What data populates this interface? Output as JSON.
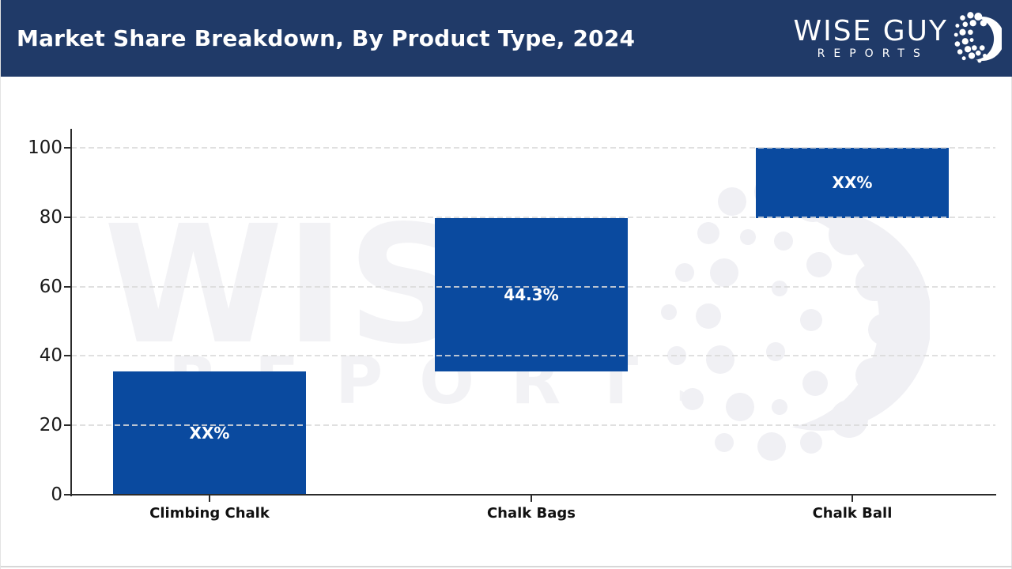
{
  "header": {
    "title": "Market Share Breakdown, By Product Type, 2024",
    "logo": {
      "line1": "WISE GUY",
      "line2": "REPORTS"
    }
  },
  "watermark": {
    "line1": "WISE",
    "line2": "REPORTS"
  },
  "chart_data": {
    "type": "bar",
    "subtype": "waterfall",
    "title": "Market Share Breakdown, By Product Type, 2024",
    "categories": [
      "Climbing Chalk",
      "Chalk Bags",
      "Chalk Ball"
    ],
    "segments": [
      {
        "category": "Climbing Chalk",
        "base": 0,
        "top": 35.5,
        "label": "XX%"
      },
      {
        "category": "Chalk Bags",
        "base": 35.5,
        "top": 79.8,
        "label": "44.3%"
      },
      {
        "category": "Chalk Ball",
        "base": 79.8,
        "top": 100,
        "label": "XX%"
      }
    ],
    "xlabel": "",
    "ylabel": "",
    "ylim": [
      0,
      100
    ],
    "yticks": [
      0,
      20,
      40,
      60,
      80,
      100
    ],
    "grid": "horizontal-dashed",
    "legend": "none",
    "bar_color": "#0a4a9f",
    "bar_label_color": "#ffffff",
    "header_color": "#203a68"
  }
}
